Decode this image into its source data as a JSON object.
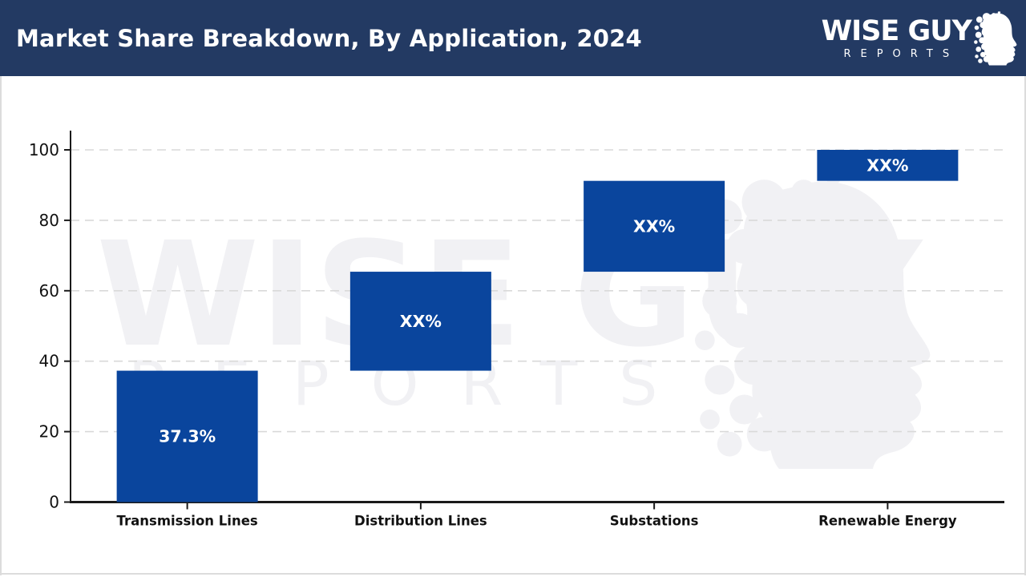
{
  "header": {
    "title": "Market Share Breakdown, By Application, 2024"
  },
  "logo": {
    "line1": "WISE GUY",
    "line2": "REPORTS"
  },
  "watermark": {
    "line1": "WISE GUY",
    "line2": "REPORTS"
  },
  "colors": {
    "header_bg": "#233a63",
    "bar": "#0a459d",
    "bar_label": "#ffffff",
    "axis": "#1a1a1a",
    "tick_label": "#111111",
    "grid": "#d9d9d9",
    "watermark": "#f1f1f4",
    "page_border": "#dcdcdc"
  },
  "chart_data": {
    "type": "bar",
    "subtype": "waterfall",
    "title": "Market Share Breakdown, By Application, 2024",
    "categories": [
      "Transmission Lines",
      "Distribution Lines",
      "Substations",
      "Renewable Energy"
    ],
    "series": [
      {
        "name": "Market Share %",
        "segments": [
          {
            "category": "Transmission Lines",
            "start": 0,
            "end": 37.3,
            "label": "37.3%"
          },
          {
            "category": "Distribution Lines",
            "start": 37.3,
            "end": 65.4,
            "label": "XX%"
          },
          {
            "category": "Substations",
            "start": 65.4,
            "end": 91.2,
            "label": "XX%"
          },
          {
            "category": "Renewable Energy",
            "start": 91.2,
            "end": 100,
            "label": "XX%"
          }
        ]
      }
    ],
    "xlabel": "",
    "ylabel": "",
    "ylim": [
      0,
      105
    ],
    "yticks": [
      0,
      20,
      40,
      60,
      80,
      100
    ],
    "grid": "horizontal dashed",
    "legend": "none"
  }
}
